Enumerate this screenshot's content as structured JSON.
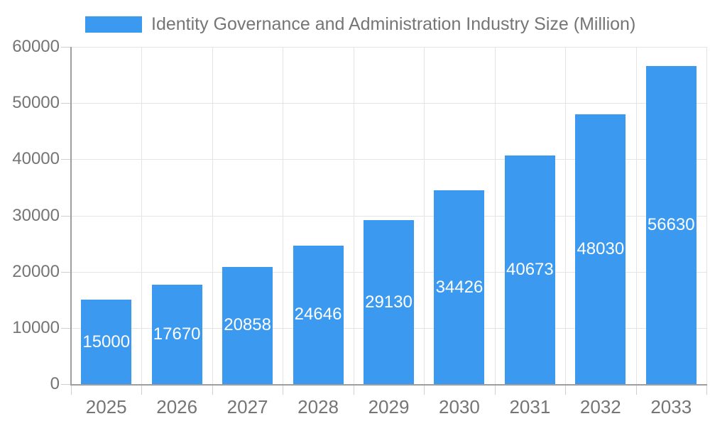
{
  "legend": {
    "label": "Identity Governance and Administration Industry Size (Million)"
  },
  "chart_data": {
    "type": "bar",
    "title": "",
    "xlabel": "",
    "ylabel": "",
    "categories": [
      "2025",
      "2026",
      "2027",
      "2028",
      "2029",
      "2030",
      "2031",
      "2032",
      "2033"
    ],
    "series": [
      {
        "name": "Identity Governance and Administration Industry Size (Million)",
        "values": [
          15000,
          17670,
          20858,
          24646,
          29130,
          34426,
          40673,
          48030,
          56630
        ]
      }
    ],
    "value_labels": [
      "15000",
      "17670",
      "20858",
      "24646",
      "29130",
      "34426",
      "40673",
      "48030",
      "56630"
    ],
    "ylim": [
      0,
      60000
    ],
    "yticks": [
      0,
      10000,
      20000,
      30000,
      40000,
      50000,
      60000
    ],
    "ytick_labels": [
      "0",
      "10000",
      "20000",
      "30000",
      "40000",
      "50000",
      "60000"
    ],
    "grid": true,
    "legend_position": "top"
  },
  "colors": {
    "bar": "#3B99F0",
    "gridline": "#E4E4E4",
    "axis": "#9E9E9E",
    "tick": "#CFCFCF",
    "text": "#757575",
    "value_label": "#FFFFFF",
    "background": "#FFFFFF"
  }
}
